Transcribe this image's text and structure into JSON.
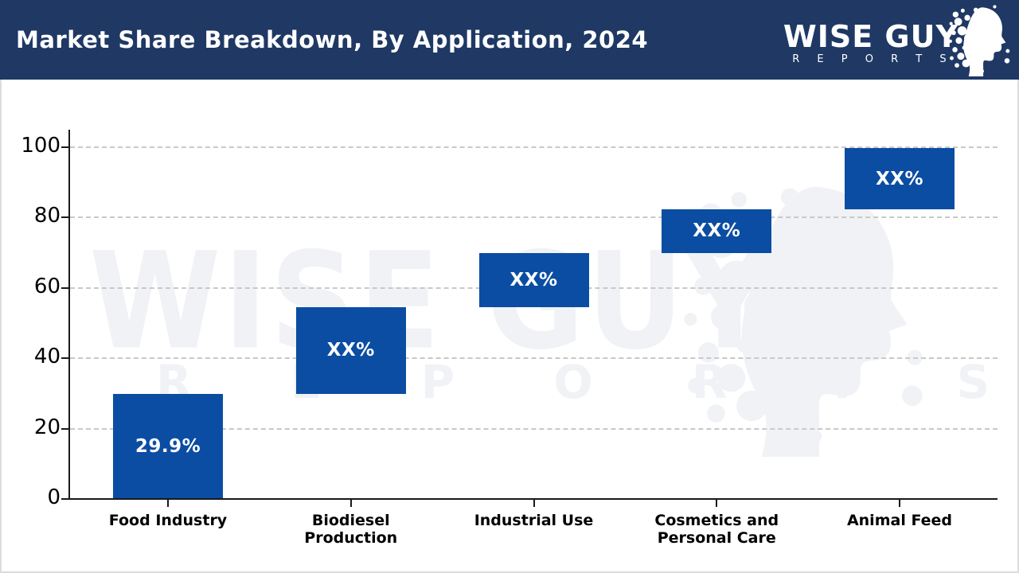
{
  "header": {
    "title": "Market Share Breakdown, By Application, 2024",
    "logo": {
      "name": "WISE GUY",
      "tagline": "R E P O R T S"
    }
  },
  "watermark": {
    "name": "WISE GUY",
    "tagline": "R E P O R T S"
  },
  "colors": {
    "header_bg": "#1f3864",
    "bar": "#0b4da2",
    "bar_label": "#ffffff",
    "grid": "#c9c9c9",
    "axis": "#1a1a1a",
    "watermark": "#f0f2f6"
  },
  "chart_data": {
    "type": "bar",
    "subtype": "waterfall",
    "title": "Market Share Breakdown, By Application, 2024",
    "categories": [
      "Food Industry",
      "Biodiesel Production",
      "Industrial Use",
      "Cosmetics and Personal Care",
      "Animal Feed"
    ],
    "bars": [
      {
        "start": 0,
        "end": 29.9,
        "label": "29.9%"
      },
      {
        "start": 29.9,
        "end": 54.6,
        "label": "XX%"
      },
      {
        "start": 54.6,
        "end": 70.0,
        "label": "XX%"
      },
      {
        "start": 70.0,
        "end": 82.4,
        "label": "XX%"
      },
      {
        "start": 82.4,
        "end": 99.7,
        "label": "XX%"
      }
    ],
    "xlabel": "",
    "ylabel": "",
    "yticks": [
      0,
      20,
      40,
      60,
      80,
      100
    ],
    "ylim": [
      0,
      105
    ],
    "grid": "horizontal-dashed",
    "legend": "none",
    "bar_labels_inside": true
  }
}
